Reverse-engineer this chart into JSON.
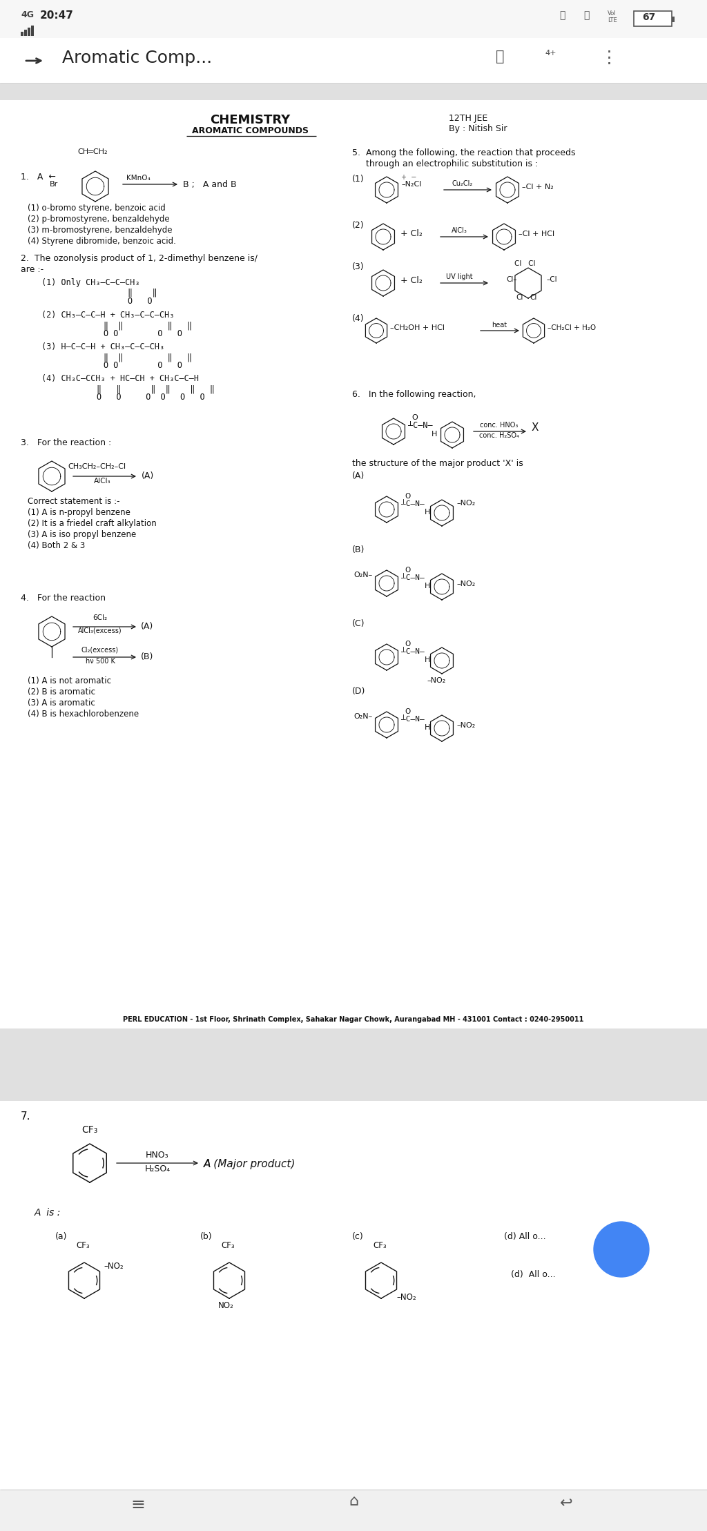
{
  "fig_w": 10.24,
  "fig_h": 22.18,
  "dpi": 100,
  "status_bg": "#f2f2f2",
  "nav_bg": "#ffffff",
  "page_bg": "#ffffff",
  "gray_band": "#e0e0e0",
  "text_dark": "#111111",
  "text_mid": "#444444",
  "footer_text": "PERL EDUCATION - 1st Floor, Shrinath Complex, Sahakar Nagar Chowk, Aurangabad MH - 431001 Contact : 0240-2950011",
  "nav_title": "Aromatic Comp...",
  "header_title": "CHEMISTRY",
  "header_sub": "AROMATIC COMPOUNDS",
  "header_r1": "12TH JEE",
  "header_r2": "By : Nitish Sir"
}
